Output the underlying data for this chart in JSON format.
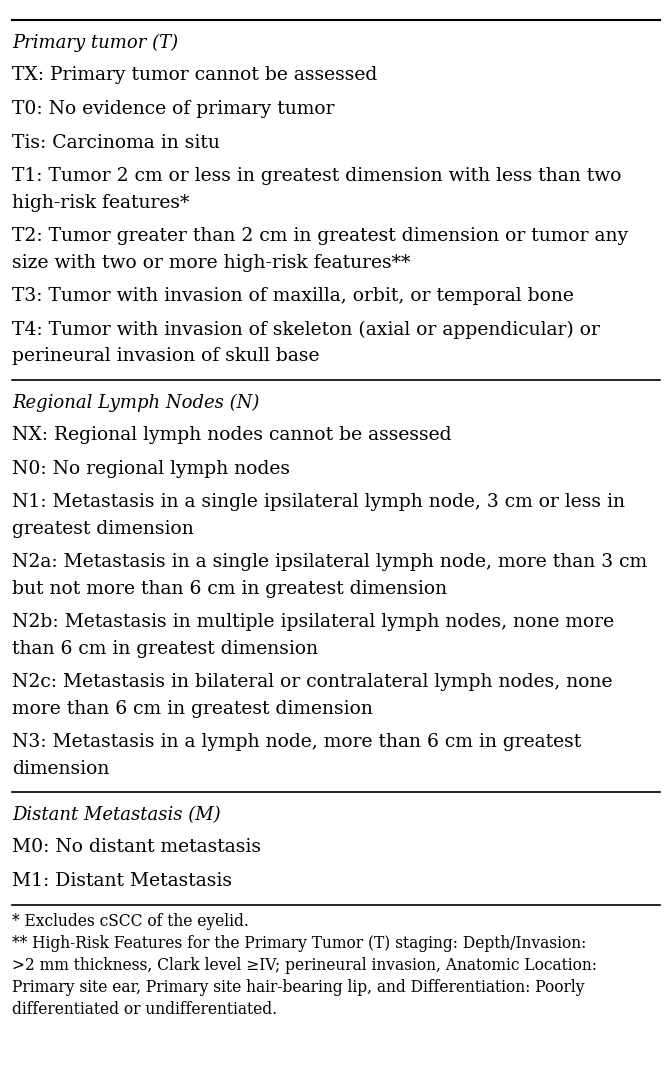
{
  "background_color": "#ffffff",
  "text_color": "#000000",
  "sections": [
    {
      "header": "Primary tumor (T)",
      "entries": [
        [
          "TX: Primary tumor cannot be assessed"
        ],
        [
          "T0: No evidence of primary tumor"
        ],
        [
          "Tis: Carcinoma in situ"
        ],
        [
          "T1: Tumor 2 cm or less in greatest dimension with less than two",
          "high-risk features*"
        ],
        [
          "T2: Tumor greater than 2 cm in greatest dimension or tumor any",
          "size with two or more high-risk features**"
        ],
        [
          "T3: Tumor with invasion of maxilla, orbit, or temporal bone"
        ],
        [
          "T4: Tumor with invasion of skeleton (axial or appendicular) or",
          "perineural invasion of skull base"
        ]
      ]
    },
    {
      "header": "Regional Lymph Nodes (N)",
      "entries": [
        [
          "NX: Regional lymph nodes cannot be assessed"
        ],
        [
          "N0: No regional lymph nodes"
        ],
        [
          "N1: Metastasis in a single ipsilateral lymph node, 3 cm or less in",
          "greatest dimension"
        ],
        [
          "N2a: Metastasis in a single ipsilateral lymph node, more than 3 cm",
          "but not more than 6 cm in greatest dimension"
        ],
        [
          "N2b: Metastasis in multiple ipsilateral lymph nodes, none more",
          "than 6 cm in greatest dimension"
        ],
        [
          "N2c: Metastasis in bilateral or contralateral lymph nodes, none",
          "more than 6 cm in greatest dimension"
        ],
        [
          "N3: Metastasis in a lymph node, more than 6 cm in greatest",
          "dimension"
        ]
      ]
    },
    {
      "header": "Distant Metastasis (M)",
      "entries": [
        [
          "M0: No distant metastasis"
        ],
        [
          "M1: Distant Metastasis"
        ]
      ]
    }
  ],
  "footnotes": [
    [
      "* Excludes cSCC of the eyelid."
    ],
    [
      "** High-Risk Features for the Primary Tumor (T) staging: Depth/Invasion:",
      ">2 mm thickness, Clark level ≥IV; perineural invasion, Anatomic Location:",
      "Primary site ear, Primary site hair-bearing lip, and Differentiation: Poorly",
      "differentiated or undifferentiated."
    ]
  ],
  "font_family": "DejaVu Serif",
  "entry_fontsize": 13.5,
  "header_fontsize": 13.0,
  "footnote_fontsize": 11.2,
  "fig_width": 6.7,
  "fig_height": 10.68,
  "dpi": 100
}
